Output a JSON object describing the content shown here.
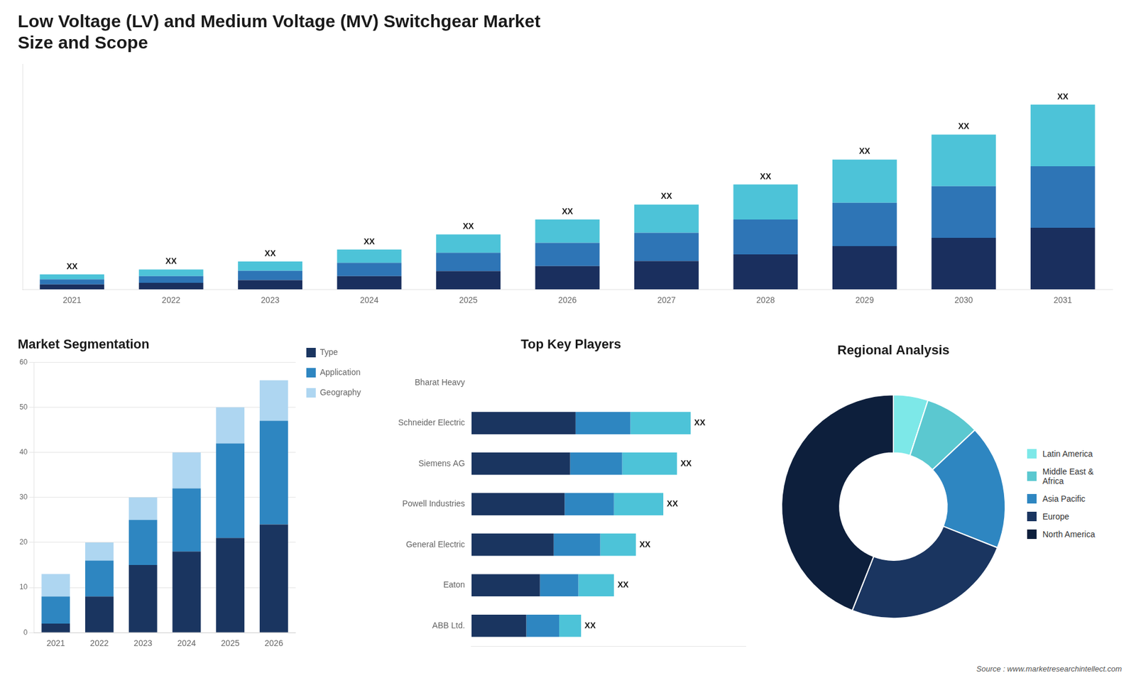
{
  "chart_data": [
    {
      "type": "bar",
      "title": "Low Voltage (LV) and Medium Voltage (MV) Switchgear Market\nSize and Scope",
      "categories": [
        "2021",
        "2022",
        "2023",
        "2024",
        "2025",
        "2026",
        "2027",
        "2028",
        "2029",
        "2030",
        "2031"
      ],
      "series": [
        {
          "color": "#1a2f5e",
          "values": [
            1.5,
            2.0,
            2.8,
            4.0,
            5.5,
            7.0,
            8.5,
            10.5,
            13.0,
            15.5,
            18.5
          ]
        },
        {
          "color": "#2e75b6",
          "values": [
            1.5,
            2.0,
            2.8,
            4.0,
            5.5,
            7.0,
            8.5,
            10.5,
            13.0,
            15.5,
            18.5
          ]
        },
        {
          "color": "#4dc3d8",
          "values": [
            1.5,
            2.0,
            2.8,
            4.0,
            5.5,
            7.0,
            8.5,
            10.5,
            13.0,
            15.5,
            18.5
          ]
        }
      ],
      "stacked": true,
      "ylim": [
        0,
        67.71
      ],
      "grid": false,
      "tick_labels": "x",
      "annotations": [
        {
          "category": "2021",
          "text": "XX"
        },
        {
          "category": "2022",
          "text": "XX"
        },
        {
          "category": "2023",
          "text": "XX"
        },
        {
          "category": "2024",
          "text": "XX"
        },
        {
          "category": "2025",
          "text": "XX"
        },
        {
          "category": "2026",
          "text": "XX"
        },
        {
          "category": "2027",
          "text": "XX"
        },
        {
          "category": "2028",
          "text": "XX"
        },
        {
          "category": "2029",
          "text": "XX"
        },
        {
          "category": "2030",
          "text": "XX"
        },
        {
          "category": "2031",
          "text": "XX"
        }
      ]
    },
    {
      "type": "bar",
      "title": "Market Segmentation",
      "categories": [
        "2021",
        "2022",
        "2023",
        "2024",
        "2025",
        "2026"
      ],
      "series": [
        {
          "name": "Type",
          "color": "#1a3560",
          "values": [
            2,
            8,
            15,
            18,
            21,
            24
          ]
        },
        {
          "name": "Application",
          "color": "#2e86c1",
          "values": [
            6,
            8,
            10,
            14,
            21,
            23
          ]
        },
        {
          "name": "Geography",
          "color": "#aed6f1",
          "values": [
            5,
            4,
            5,
            8,
            8,
            9
          ]
        }
      ],
      "stacked": true,
      "ylim": [
        0,
        60
      ],
      "yticks": [
        0,
        10,
        20,
        30,
        40,
        50,
        60
      ],
      "grid": true,
      "legend": "right"
    },
    {
      "type": "bar",
      "orientation": "horizontal",
      "title": "Top Key Players",
      "categories": [
        "Bharat Heavy",
        "Schneider Electric",
        "Siemens AG",
        "Powell Industries",
        "General Electric",
        "Eaton",
        "ABB Ltd."
      ],
      "series": [
        {
          "color": "#1a3560",
          "values": [
            0.0,
            0.38,
            0.36,
            0.34,
            0.3,
            0.25,
            0.2
          ]
        },
        {
          "color": "#2e86c1",
          "values": [
            0.0,
            0.2,
            0.19,
            0.18,
            0.17,
            0.14,
            0.12
          ]
        },
        {
          "color": "#4dc3d8",
          "values": [
            0.0,
            0.22,
            0.2,
            0.18,
            0.13,
            0.13,
            0.08
          ]
        }
      ],
      "stacked": true,
      "xlim": [
        0,
        1.0
      ],
      "grid": false,
      "tick_labels": "y",
      "annotations": [
        {
          "category": "Schneider Electric",
          "text": "XX"
        },
        {
          "category": "Siemens AG",
          "text": "XX"
        },
        {
          "category": "Powell Industries",
          "text": "XX"
        },
        {
          "category": "General Electric",
          "text": "XX"
        },
        {
          "category": "Eaton",
          "text": "XX"
        },
        {
          "category": "ABB Ltd.",
          "text": "XX"
        }
      ]
    },
    {
      "type": "doughnut",
      "title": "Regional Analysis",
      "categories": [
        "Latin America",
        "Middle East &\nAfrica",
        "Asia Pacific",
        "Europe",
        "North America"
      ],
      "values": [
        5,
        8,
        18,
        25,
        44
      ],
      "colors": [
        "#7de8e8",
        "#5bc8d0",
        "#2e86c1",
        "#1a3560",
        "#0d1f3c"
      ],
      "legend": "right",
      "annotations": [
        {
          "text": "Source : www.marketresearchintellect.com"
        }
      ]
    }
  ]
}
